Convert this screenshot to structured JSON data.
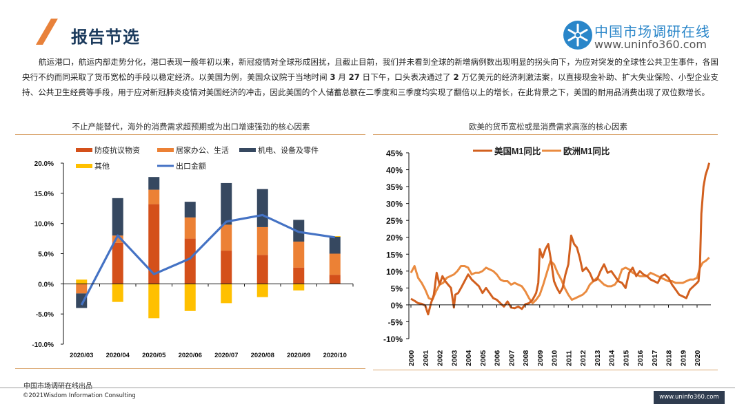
{
  "header": {
    "title": "报告节选",
    "brand_name": "中国市场调研在线",
    "brand_url": "www.uninfo360.com",
    "accent_color": "#e8813a",
    "title_color": "#1b3a5c",
    "brand_color": "#2a86c9"
  },
  "body": {
    "paragraph_parts": [
      "航运港口，航运内部走势分化，港口表现一般年初以来，新冠疫情对全球形成困扰，且截止目前，我们并未看到全球的新增病例数出现明显的拐头向下，为应对突发的全球性公共卫生事件，各国央行不约而同采取了货币宽松的手段以稳定经济。以美国为例，美国众议院于当地时间 ",
      "3",
      " 月 ",
      "27",
      " 日下午，口头表决通过了 ",
      "2",
      " 万亿美元的经济刺激法案，以直接现金补助、扩大失业保险、小型企业支持、公共卫生经费等手段，用于应对新冠肺炎疫情对美国经济的冲击，因此美国的个人储蓄总额在二季度和三季度均实现了翻倍以上的增长，在此背景之下，美国的耐用品消费出现了双位数增长。"
    ]
  },
  "footer": {
    "publisher": "中国市场调研在线出品",
    "copyright": "©2021Wisdom Information Consulting",
    "url_badge": "www.uninfo360.com"
  },
  "chart_data": [
    {
      "type": "bar",
      "stacked": true,
      "title": "不止产能替代，海外的消费需求超预期或为出口增速强劲的核心因素",
      "categories": [
        "2020/03",
        "2020/04",
        "2020/05",
        "2020/06",
        "2020/07",
        "2020/08",
        "2020/09",
        "2020/10"
      ],
      "ylim": [
        -10,
        20
      ],
      "yticks": [
        "20.0%",
        "15.0%",
        "10.0%",
        "5.0%",
        "0.0%",
        "-5.0%",
        "-10.0%"
      ],
      "ytick_values": [
        20,
        15,
        10,
        5,
        0,
        -5,
        -10
      ],
      "legend_position": "top",
      "series": [
        {
          "name": "防疫抗议物资",
          "kind": "bar",
          "color": "#d4501a",
          "values": [
            0.0,
            6.8,
            13.2,
            7.5,
            5.5,
            4.8,
            2.7,
            1.5
          ]
        },
        {
          "name": "居家办公、生活",
          "kind": "bar",
          "color": "#ec8135",
          "values": [
            -1.6,
            1.2,
            2.4,
            3.5,
            4.3,
            4.6,
            4.3,
            3.5
          ]
        },
        {
          "name": "机电、设备及零件",
          "kind": "bar",
          "color": "#364860",
          "values": [
            -2.4,
            6.2,
            2.1,
            2.6,
            6.9,
            6.3,
            3.6,
            2.8
          ]
        },
        {
          "name": "其他",
          "kind": "bar",
          "color": "#ffc000",
          "values": [
            0.7,
            -3.0,
            -5.7,
            -4.5,
            -3.2,
            -2.2,
            -1.1,
            0.1
          ]
        },
        {
          "name": "出口金额",
          "kind": "line",
          "color": "#4472c4",
          "values": [
            -3.5,
            8.0,
            1.6,
            4.2,
            10.3,
            11.4,
            8.6,
            7.7
          ]
        }
      ]
    },
    {
      "type": "line",
      "title": "欧美的货币宽松或是消费需求高涨的核心因素",
      "xlabel": "",
      "ylabel": "",
      "ylim": [
        -10,
        45
      ],
      "yticks": [
        "45%",
        "40%",
        "35%",
        "30%",
        "25%",
        "20%",
        "15%",
        "10%",
        "5%",
        "0%",
        "-5%",
        "-10%"
      ],
      "ytick_values": [
        45,
        40,
        35,
        30,
        25,
        20,
        15,
        10,
        5,
        0,
        -5,
        -10
      ],
      "xticks": [
        "2000",
        "2001",
        "2002",
        "2003",
        "2004",
        "2005",
        "2006",
        "2007",
        "2008",
        "2009",
        "2010",
        "2011",
        "2012",
        "2013",
        "2014",
        "2015",
        "2016",
        "2017",
        "2018",
        "2019",
        "2020"
      ],
      "xlim": [
        2000,
        2020.85
      ],
      "legend_position": "top",
      "series": [
        {
          "name": "美国M1同比",
          "color": "#d2601f",
          "x": [
            2000.0,
            2000.25,
            2000.5,
            2000.75,
            2001.0,
            2001.2,
            2001.4,
            2001.6,
            2001.8,
            2002.0,
            2002.2,
            2002.4,
            2002.6,
            2002.8,
            2003.0,
            2003.1,
            2003.3,
            2003.5,
            2003.75,
            2004.0,
            2004.25,
            2004.5,
            2004.75,
            2005.0,
            2005.25,
            2005.5,
            2005.75,
            2006.0,
            2006.25,
            2006.5,
            2006.75,
            2007.0,
            2007.25,
            2007.5,
            2007.75,
            2008.0,
            2008.25,
            2008.5,
            2008.75,
            2008.9,
            2009.0,
            2009.2,
            2009.4,
            2009.6,
            2009.8,
            2010.0,
            2010.2,
            2010.4,
            2010.6,
            2010.8,
            2011.0,
            2011.2,
            2011.4,
            2011.6,
            2011.8,
            2012.0,
            2012.25,
            2012.5,
            2012.75,
            2013.0,
            2013.25,
            2013.5,
            2013.75,
            2014.0,
            2014.25,
            2014.5,
            2014.75,
            2015.0,
            2015.25,
            2015.5,
            2015.75,
            2016.0,
            2016.25,
            2016.5,
            2016.75,
            2017.0,
            2017.25,
            2017.5,
            2017.75,
            2018.0,
            2018.25,
            2018.5,
            2018.75,
            2019.0,
            2019.25,
            2019.5,
            2019.75,
            2020.0,
            2020.1,
            2020.2,
            2020.3,
            2020.45,
            2020.6,
            2020.75,
            2020.85
          ],
          "values": [
            1.8,
            1.2,
            0.5,
            0.3,
            -0.2,
            -2.8,
            0.5,
            3.0,
            9.5,
            6.0,
            8.5,
            7.0,
            6.0,
            5.0,
            -0.8,
            3.0,
            3.5,
            5.0,
            7.0,
            9.0,
            7.5,
            6.5,
            5.5,
            3.5,
            5.0,
            3.5,
            2.0,
            1.5,
            0.5,
            -0.5,
            1.0,
            -0.8,
            -1.0,
            -0.5,
            -1.2,
            0.2,
            0.5,
            1.5,
            3.5,
            6.5,
            16.5,
            14.0,
            16.5,
            18.0,
            13.0,
            7.0,
            5.0,
            3.5,
            5.0,
            9.0,
            12.0,
            20.5,
            18.0,
            17.0,
            14.0,
            10.0,
            11.0,
            9.5,
            7.0,
            7.5,
            10.0,
            12.0,
            9.5,
            10.0,
            8.5,
            7.0,
            6.5,
            5.0,
            9.5,
            11.0,
            8.5,
            10.0,
            9.0,
            8.5,
            7.5,
            7.0,
            6.5,
            8.5,
            9.0,
            8.0,
            6.0,
            4.5,
            3.0,
            2.5,
            2.0,
            4.5,
            5.5,
            6.5,
            7.0,
            12.0,
            27.0,
            35.0,
            38.5,
            40.5,
            42.0
          ]
        },
        {
          "name": "欧洲M1同比",
          "color": "#ea8b40",
          "x": [
            2000.0,
            2000.25,
            2000.5,
            2000.75,
            2001.0,
            2001.25,
            2001.5,
            2001.75,
            2002.0,
            2002.25,
            2002.5,
            2002.75,
            2003.0,
            2003.25,
            2003.5,
            2003.75,
            2004.0,
            2004.25,
            2004.5,
            2004.75,
            2005.0,
            2005.25,
            2005.5,
            2005.75,
            2006.0,
            2006.25,
            2006.5,
            2006.75,
            2007.0,
            2007.25,
            2007.5,
            2007.75,
            2008.0,
            2008.25,
            2008.5,
            2008.75,
            2009.0,
            2009.25,
            2009.5,
            2009.75,
            2010.0,
            2010.25,
            2010.5,
            2010.75,
            2011.0,
            2011.25,
            2011.5,
            2011.75,
            2012.0,
            2012.25,
            2012.5,
            2012.75,
            2013.0,
            2013.25,
            2013.5,
            2013.75,
            2014.0,
            2014.25,
            2014.5,
            2014.75,
            2015.0,
            2015.25,
            2015.5,
            2015.75,
            2016.0,
            2016.25,
            2016.5,
            2016.75,
            2017.0,
            2017.25,
            2017.5,
            2017.75,
            2018.0,
            2018.25,
            2018.5,
            2018.75,
            2019.0,
            2019.25,
            2019.5,
            2019.75,
            2020.0,
            2020.2,
            2020.4,
            2020.6,
            2020.85
          ],
          "values": [
            9.5,
            11.5,
            8.0,
            6.5,
            4.5,
            2.0,
            1.5,
            4.0,
            6.0,
            6.5,
            8.0,
            8.5,
            9.0,
            10.0,
            11.5,
            11.5,
            11.0,
            9.0,
            9.5,
            9.5,
            10.0,
            11.0,
            10.5,
            10.0,
            9.0,
            7.5,
            7.0,
            7.0,
            6.0,
            6.5,
            6.0,
            5.5,
            4.0,
            2.0,
            0.5,
            1.5,
            3.0,
            6.0,
            9.5,
            13.0,
            12.0,
            9.5,
            7.5,
            5.0,
            3.0,
            1.5,
            2.0,
            2.5,
            3.0,
            4.0,
            6.0,
            7.0,
            8.0,
            7.0,
            6.0,
            5.5,
            5.5,
            6.0,
            7.5,
            10.5,
            11.0,
            10.5,
            9.5,
            9.0,
            8.5,
            8.5,
            8.5,
            9.5,
            9.0,
            8.5,
            8.0,
            7.5,
            7.0,
            7.0,
            6.5,
            6.5,
            6.5,
            7.0,
            7.5,
            7.5,
            8.0,
            11.0,
            12.5,
            13.0,
            14.0
          ]
        }
      ]
    }
  ]
}
